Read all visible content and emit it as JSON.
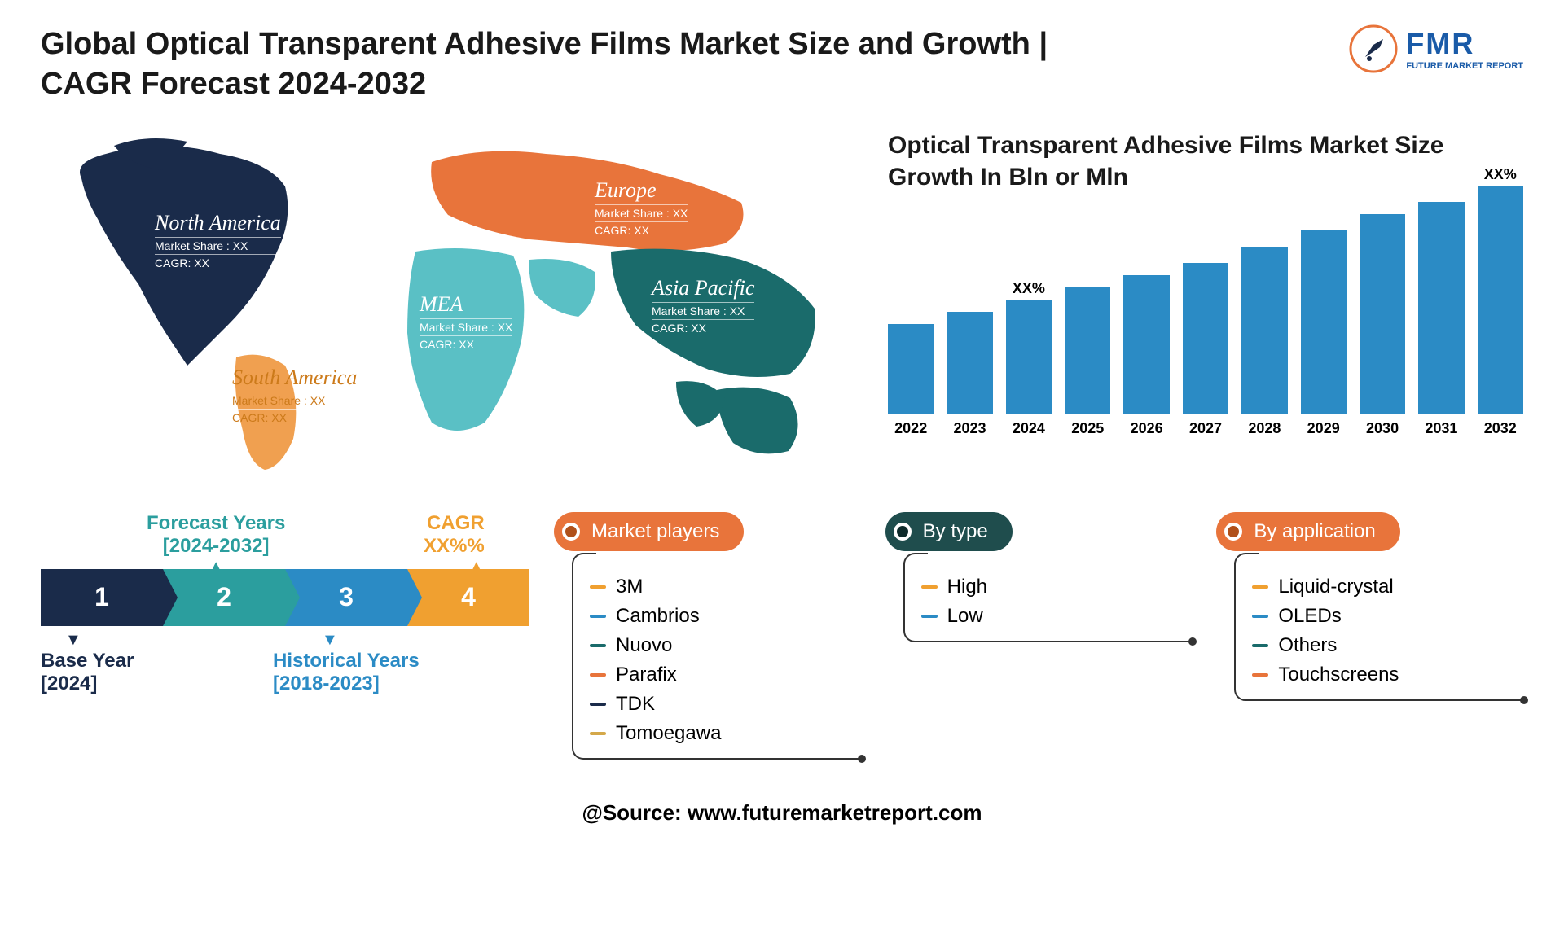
{
  "title": "Global Optical Transparent Adhesive Films Market Size and Growth | CAGR Forecast 2024-2032",
  "logo": {
    "main": "FMR",
    "sub": "FUTURE MARKET REPORT"
  },
  "colors": {
    "na": "#1a2b4a",
    "sa": "#f0a050",
    "mea": "#5ac0c5",
    "eu": "#e8743b",
    "ap": "#1a6b6b",
    "bar": "#2b8bc5",
    "seg1": "#1a2b4a",
    "seg2": "#2b9e9e",
    "seg3": "#2b8bc5",
    "seg4": "#f0a030",
    "pill_players": "#e8743b",
    "pill_type": "#1f4d4d",
    "pill_app": "#e8743b"
  },
  "regions": {
    "na": {
      "name": "North America",
      "share": "Market Share : XX",
      "cagr": "CAGR: XX"
    },
    "sa": {
      "name": "South America",
      "share": "Market Share : XX",
      "cagr": "CAGR: XX"
    },
    "mea": {
      "name": "MEA",
      "share": "Market Share : XX",
      "cagr": "CAGR: XX"
    },
    "eu": {
      "name": "Europe",
      "share": "Market Share : XX",
      "cagr": "CAGR: XX"
    },
    "ap": {
      "name": "Asia Pacific",
      "share": "Market Share : XX",
      "cagr": "CAGR: XX"
    }
  },
  "chart": {
    "title": "Optical Transparent Adhesive Films Market Size Growth In\nBln or Mln",
    "type": "bar",
    "years": [
      "2022",
      "2023",
      "2024",
      "2025",
      "2026",
      "2027",
      "2028",
      "2029",
      "2030",
      "2031",
      "2032"
    ],
    "values": [
      110,
      125,
      140,
      155,
      170,
      185,
      205,
      225,
      245,
      260,
      280
    ],
    "bar_color": "#2b8bc5",
    "annotations": {
      "2024": "XX%",
      "2032": "XX%"
    }
  },
  "timeline": {
    "top": [
      {
        "label": "Forecast Years",
        "value": "[2024-2032]",
        "color": "#2b9e9e",
        "seg": 2
      },
      {
        "label": "CAGR",
        "value": "XX%%",
        "color": "#f0a030",
        "seg": 4
      }
    ],
    "segs": [
      "1",
      "2",
      "3",
      "4"
    ],
    "bot": [
      {
        "label": "Base Year",
        "value": "[2024]",
        "color": "#1a2b4a",
        "seg": 1
      },
      {
        "label": "Historical Years",
        "value": "[2018-2023]",
        "color": "#2b8bc5",
        "seg": 3
      }
    ]
  },
  "categories": {
    "players": {
      "title": "Market players",
      "items": [
        "3M",
        "Cambrios",
        "Nuovo",
        "Parafix",
        "TDK",
        "Tomoegawa"
      ],
      "tick_colors": [
        "#f0a030",
        "#2b8bc5",
        "#1a6b6b",
        "#e8743b",
        "#1a2b4a",
        "#d4a84a"
      ]
    },
    "type": {
      "title": "By type",
      "items": [
        "High",
        "Low"
      ],
      "tick_colors": [
        "#f0a030",
        "#2b8bc5"
      ]
    },
    "app": {
      "title": "By application",
      "items": [
        "Liquid-crystal",
        "OLEDs",
        "Others",
        "Touchscreens"
      ],
      "tick_colors": [
        "#f0a030",
        "#2b8bc5",
        "#1a6b6b",
        "#e8743b"
      ]
    }
  },
  "source": "@Source: www.futuremarketreport.com"
}
